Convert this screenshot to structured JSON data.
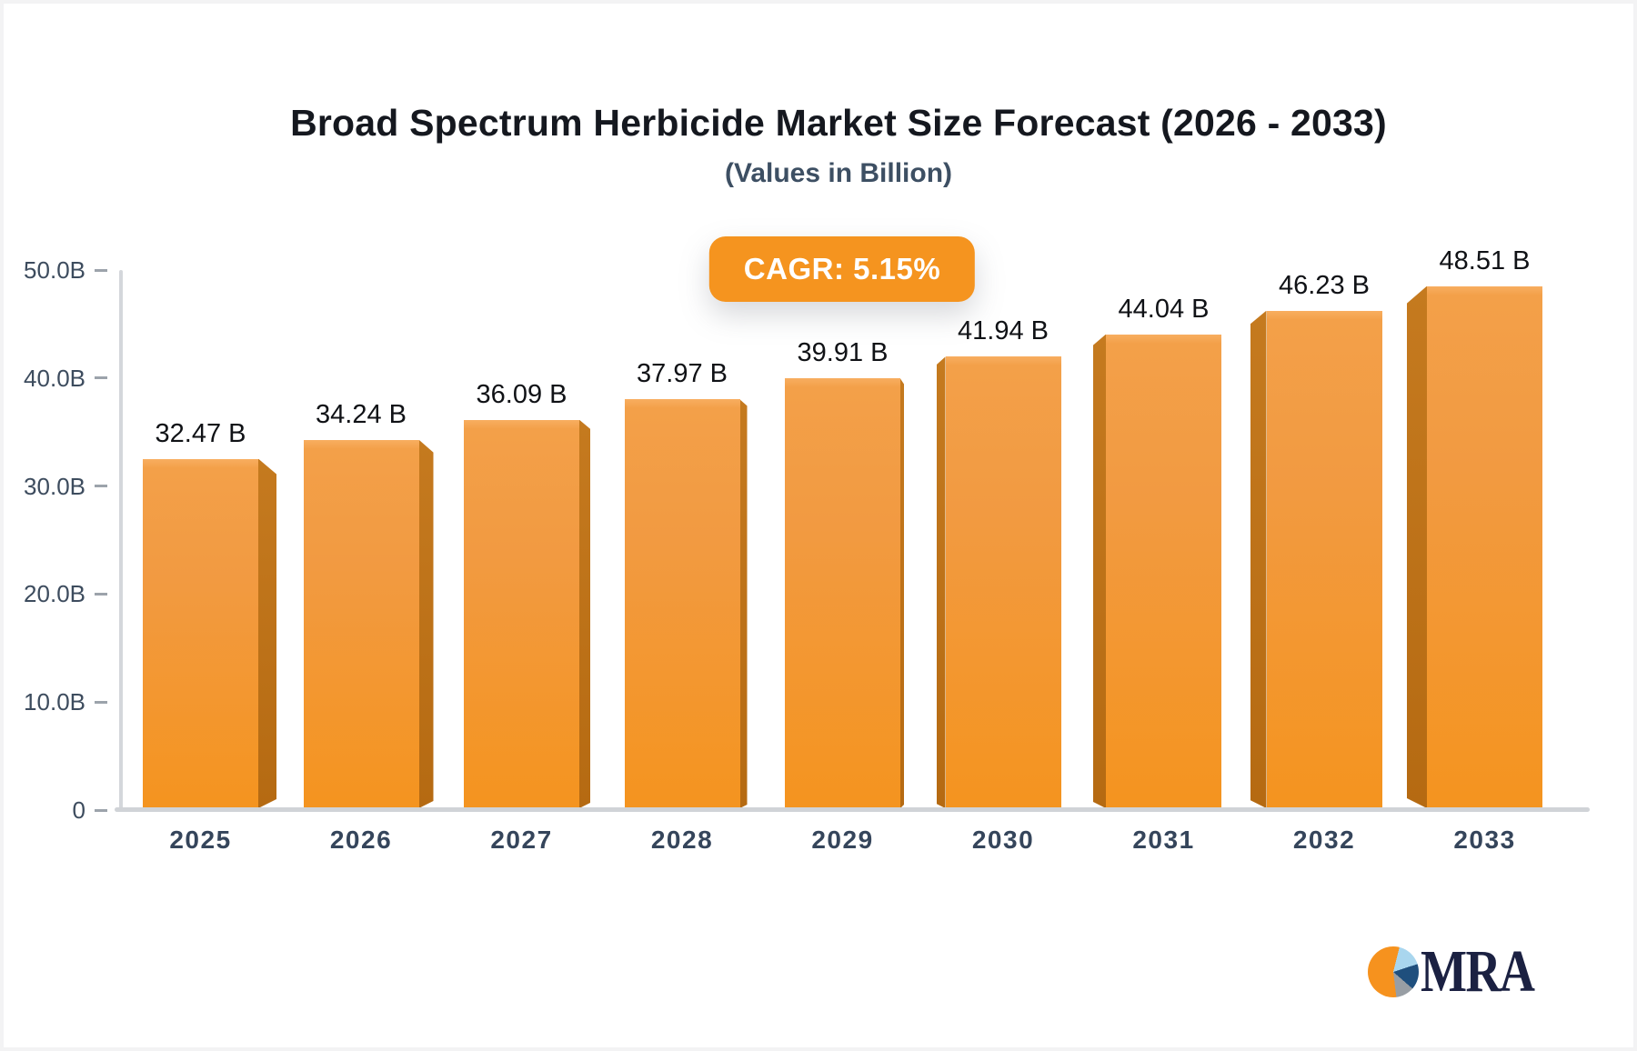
{
  "header": {
    "title": "Broad Spectrum Herbicide Market Size Forecast (2026 - 2033)",
    "subtitle": "(Values in Billion)"
  },
  "badge": {
    "label": "CAGR: 5.15%",
    "bg": "#f5941f",
    "text_color": "#ffffff"
  },
  "logo": {
    "text": "MRA"
  },
  "colors": {
    "bar_face": "#f29a41",
    "bar_face_highlight": "#f8ae60",
    "bar_side": "#bd7018",
    "axis_line": "#d4d7db",
    "tick": "#9ca3ab",
    "baseline": "#d0d3d7",
    "axis_text": "#3d4c5e",
    "category_text": "#35455b",
    "value_text": "#101216",
    "badge_orange": "#f5941f",
    "logo_navy": "#1b2142",
    "logo_orange": "#f6921e",
    "logo_lightblue": "#a9d6ee",
    "logo_blue": "#1f4f7d",
    "logo_grey": "#989ea4"
  },
  "chart_data": {
    "type": "bar",
    "title": "Broad Spectrum Herbicide Market Size Forecast (2026 - 2033)",
    "subtitle": "(Values in Billion)",
    "annotation": "CAGR: 5.15%",
    "categories": [
      "2025",
      "2026",
      "2027",
      "2028",
      "2029",
      "2030",
      "2031",
      "2032",
      "2033"
    ],
    "values": [
      32.47,
      34.24,
      36.09,
      37.97,
      39.91,
      41.94,
      44.04,
      46.23,
      48.51
    ],
    "value_labels": [
      "32.47 B",
      "34.24 B",
      "36.09 B",
      "37.97 B",
      "39.91 B",
      "41.94 B",
      "44.04 B",
      "46.23 B",
      "48.51 B"
    ],
    "unit": "B",
    "ylim": [
      0,
      50
    ],
    "ytick_labels": [
      "50.0B",
      "40.0B",
      "30.0B",
      "20.0B",
      "10.0B",
      "0"
    ],
    "grid": "off",
    "legend": "none",
    "bar_style": "3d-extruded-orange"
  }
}
